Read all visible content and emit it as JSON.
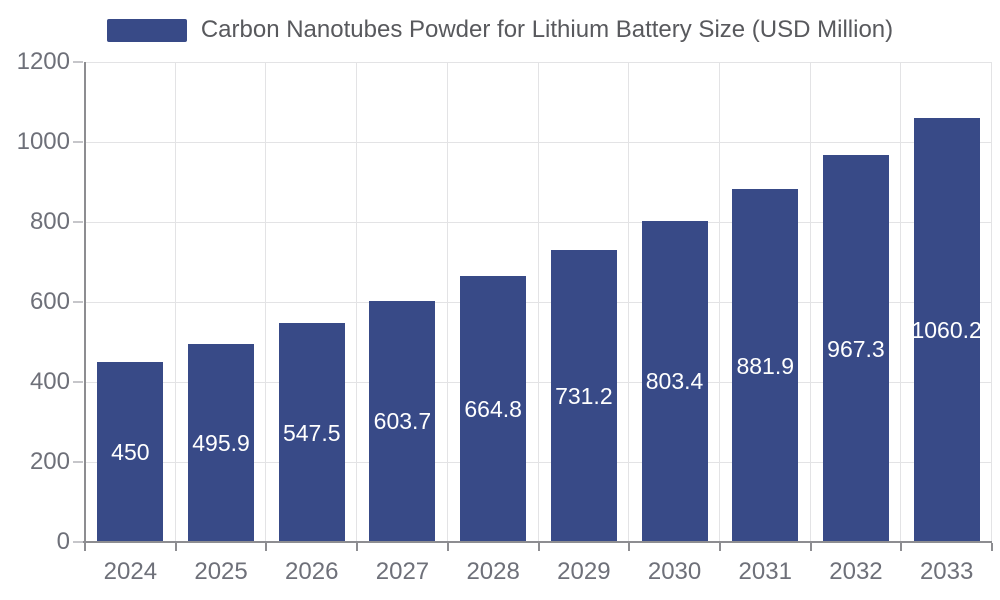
{
  "legend": {
    "label": "Carbon Nanotubes Powder for Lithium Battery Size (USD Million)"
  },
  "colors": {
    "bar": "#384A87",
    "value_label": "#FFFFFF",
    "axis_label": "#6E7079",
    "legend_text": "#58595D",
    "grid_line": "#E3E3E5",
    "axis_line": "#8D8D91",
    "y_tick": "#C6C6CA",
    "background": "#FFFFFF"
  },
  "chart_data": {
    "type": "bar",
    "title": "",
    "series_name": "Carbon Nanotubes Powder for Lithium Battery Size (USD Million)",
    "categories": [
      "2024",
      "2025",
      "2026",
      "2027",
      "2028",
      "2029",
      "2030",
      "2031",
      "2032",
      "2033"
    ],
    "values": [
      450,
      495.9,
      547.5,
      603.7,
      664.8,
      731.2,
      803.4,
      881.9,
      967.3,
      1060.2
    ],
    "value_labels": [
      "450",
      "495.9",
      "547.5",
      "603.7",
      "664.8",
      "731.2",
      "803.4",
      "881.9",
      "967.3",
      "1060.2"
    ],
    "xlabel": "",
    "ylabel": "",
    "ylim": [
      0,
      1200
    ],
    "yticks": [
      0,
      200,
      400,
      600,
      800,
      1000,
      1200
    ],
    "grid": true,
    "legend_position": "top-center",
    "value_label_position": "inside-center"
  }
}
